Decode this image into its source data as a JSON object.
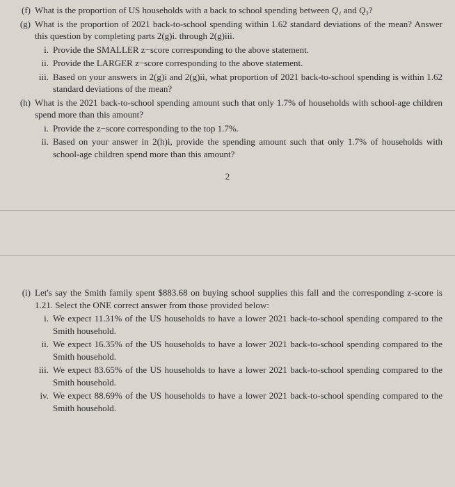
{
  "qf": {
    "label": "(f)",
    "text_a": "What is the proportion of US households with a back to school spending between ",
    "q1": "Q₁",
    "and": " and ",
    "q3": "Q₃",
    "qmark": "?"
  },
  "qg": {
    "label": "(g)",
    "text": "What is the proportion of 2021 back-to-school spending within 1.62 standard deviations of the mean? Answer this question by completing parts 2(g)i. through 2(g)iii.",
    "i": {
      "label": "i.",
      "text": "Provide the SMALLER z−score corresponding to the above statement."
    },
    "ii": {
      "label": "ii.",
      "text": "Provide the LARGER z−score corresponding to the above statement."
    },
    "iii": {
      "label": "iii.",
      "text": "Based on your answers in 2(g)i and 2(g)ii, what proportion of 2021 back-to-school spending is within 1.62 standard deviations of the mean?"
    }
  },
  "qh": {
    "label": "(h)",
    "text": "What is the 2021 back-to-school spending amount such that only 1.7% of households with school-age children spend more than this amount?",
    "i": {
      "label": "i.",
      "text": "Provide the z−score corresponding to the top 1.7%."
    },
    "ii": {
      "label": "ii.",
      "text": "Based on your answer in 2(h)i, provide the spending amount such that only 1.7% of households with school-age children spend more than this amount?"
    }
  },
  "pagenum": "2",
  "qi": {
    "label": "(i)",
    "text": "Let's say the Smith family spent $883.68 on buying school supplies this fall and the corresponding z-score is 1.21. Select the ONE correct answer from those provided below:",
    "i": {
      "label": "i.",
      "text": "We expect 11.31% of the US households to have a lower 2021 back-to-school spending compared to the Smith household."
    },
    "ii": {
      "label": "ii.",
      "text": "We expect 16.35% of the US households to have a lower 2021 back-to-school spending compared to the Smith household."
    },
    "iii": {
      "label": "iii.",
      "text": "We expect 83.65% of the US households to have a lower 2021 back-to-school spending compared to the Smith household."
    },
    "iv": {
      "label": "iv.",
      "text": "We expect 88.69% of the US households to have a lower 2021 back-to-school spending compared to the Smith household."
    }
  },
  "colors": {
    "background": "#d8d4ce",
    "text": "#2a2a2a",
    "divider": "#b8b2aa"
  }
}
